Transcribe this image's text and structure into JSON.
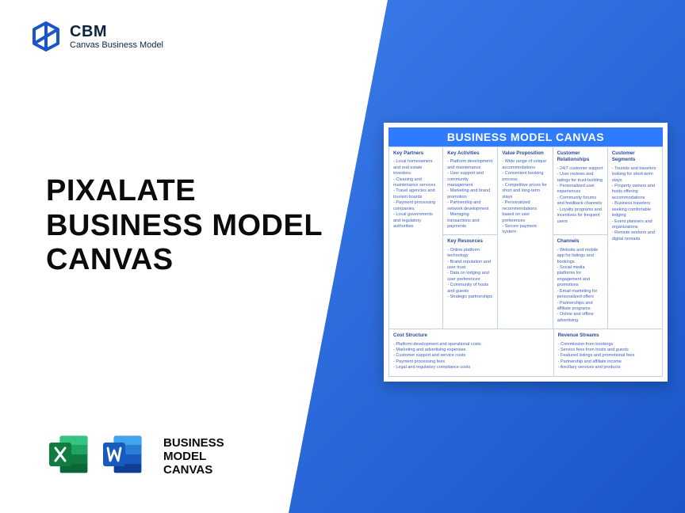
{
  "header": {
    "logo_abbr": "CBM",
    "logo_sub": "Canvas Business Model"
  },
  "title": {
    "line1": "PIXALATE",
    "line2": "BUSINESS MODEL",
    "line3": "CANVAS"
  },
  "icons_label": {
    "line1": "BUSINESS",
    "line2": "MODEL",
    "line3": "CANVAS"
  },
  "brand_colors": {
    "excel_dark": "#107c41",
    "excel_light": "#21a366",
    "word_dark": "#185abd",
    "word_light": "#2b7cd3",
    "logo_blue": "#1a56c8"
  },
  "canvas": {
    "title": "BUSINESS MODEL CANVAS",
    "key_partners": {
      "heading": "Key Partners",
      "items": [
        "Local homeowners and real estate investors",
        "Cleaning and maintenance services",
        "Travel agencies and tourism boards",
        "Payment processing companies",
        "Local governments and regulatory authorities"
      ]
    },
    "key_activities": {
      "heading": "Key Activities",
      "items": [
        "Platform development and maintenance",
        "User support and community management",
        "Marketing and brand promotion",
        "Partnership and network development",
        "Managing transactions and payments"
      ]
    },
    "value_proposition": {
      "heading": "Value Proposition",
      "items": [
        "Wide range of unique accommodations",
        "Convenient booking process",
        "Competitive prices for short and long-term stays",
        "Personalized recommendations based on user preferences",
        "Secure payment system"
      ]
    },
    "customer_relationships": {
      "heading": "Customer Relationships",
      "items": [
        "24/7 customer support",
        "User reviews and ratings for trust-building",
        "Personalized user experiences",
        "Community forums and feedback channels",
        "Loyalty programs and incentives for frequent users"
      ]
    },
    "customer_segments": {
      "heading": "Customer Segments",
      "items": [
        "Tourists and travelers looking for short-term stays",
        "Property owners and hosts offering accommodations",
        "Business travelers seeking comfortable lodging",
        "Event planners and organizations",
        "Remote workers and digital nomads"
      ]
    },
    "key_resources": {
      "heading": "Key Resources",
      "items": [
        "Online platform technology",
        "Brand reputation and user trust",
        "Data on lodging and user preferences",
        "Community of hosts and guests",
        "Strategic partnerships"
      ]
    },
    "channels": {
      "heading": "Channels",
      "items": [
        "Website and mobile app for listings and bookings",
        "Social media platforms for engagement and promotions",
        "Email marketing for personalized offers",
        "Partnerships and affiliate programs",
        "Online and offline advertising"
      ]
    },
    "cost_structure": {
      "heading": "Cost Structure",
      "items": [
        "Platform development and operational costs",
        "Marketing and advertising expenses",
        "Customer support and service costs",
        "Payment processing fees",
        "Legal and regulatory compliance costs"
      ]
    },
    "revenue_streams": {
      "heading": "Revenue Streams",
      "items": [
        "Commission from bookings",
        "Service fees from hosts and guests",
        "Featured listings and promotional fees",
        "Partnership and affiliate income",
        "Ancillary services and products"
      ]
    }
  }
}
